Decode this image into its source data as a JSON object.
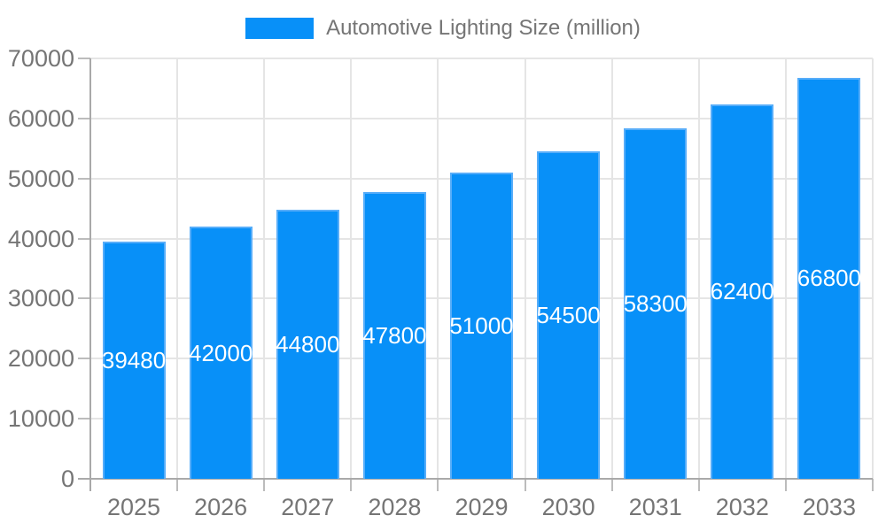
{
  "legend": {
    "label": "Automotive Lighting Size (million)"
  },
  "colors": {
    "bar_fill": "#0890f8",
    "bar_border": "#57adf9",
    "gridline": "#e5e5e5",
    "axis_line": "#a9a9a9",
    "tick_mark": "#bcbcbc",
    "axis_text": "#757575",
    "legend_text": "#757575",
    "value_label_text": "#ffffff",
    "background": "#ffffff"
  },
  "chart_data": {
    "type": "bar",
    "title": "Automotive Lighting Size (million)",
    "categories": [
      "2025",
      "2026",
      "2027",
      "2028",
      "2029",
      "2030",
      "2031",
      "2032",
      "2033"
    ],
    "values": [
      39480,
      42000,
      44800,
      47800,
      51000,
      54500,
      58300,
      62400,
      66800
    ],
    "value_labels": [
      "39480",
      "42000",
      "44800",
      "47800",
      "51000",
      "54500",
      "58300",
      "62400",
      "66800"
    ],
    "ytick_labels": [
      "0",
      "10000",
      "20000",
      "30000",
      "40000",
      "50000",
      "60000",
      "70000"
    ],
    "xlabel": "",
    "ylabel": "",
    "ylim": [
      0,
      70000
    ],
    "ytick_step": 10000,
    "grid": true,
    "legend_position": "top-center",
    "value_label_position": "inside-center"
  }
}
